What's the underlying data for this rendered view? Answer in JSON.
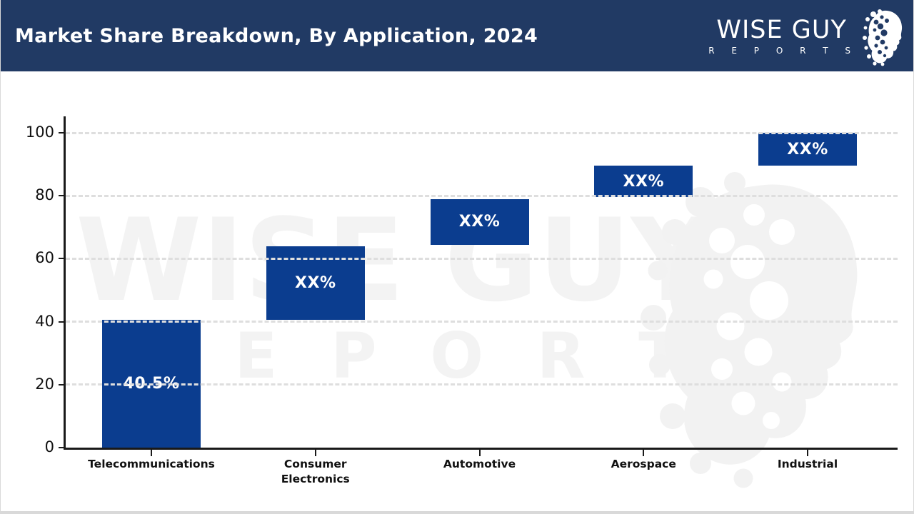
{
  "header": {
    "title": "Market Share Breakdown, By Application, 2024",
    "logo": {
      "line1": "WISE GUY",
      "line2": "R E P O R T S"
    }
  },
  "watermark": {
    "line1": "WISE GUY",
    "line2": "R E P O R T S"
  },
  "colors": {
    "header_bg": "#213a64",
    "bar": "#0b3d8f",
    "axis": "#1a1a1a",
    "grid": "#dedede",
    "tick_label": "#111111",
    "bar_label": "#ffffff",
    "watermark": "#f3f3f3",
    "logo_text": "#ffffff"
  },
  "chart_data": {
    "type": "bar",
    "subtype": "waterfall",
    "title": "Market Share Breakdown, By Application, 2024",
    "categories": [
      "Telecommunications",
      "Consumer Electronics",
      "Automotive",
      "Aerospace",
      "Industrial"
    ],
    "series": [
      {
        "name": "Market share (%)",
        "segments": [
          {
            "category": "Telecommunications",
            "start": 0,
            "end": 40.5,
            "label": "40.5%"
          },
          {
            "category": "Consumer Electronics",
            "start": 40.5,
            "end": 64,
            "label": "XX%"
          },
          {
            "category": "Automotive",
            "start": 64.5,
            "end": 79,
            "label": "XX%"
          },
          {
            "category": "Aerospace",
            "start": 79.5,
            "end": 89.5,
            "label": "XX%"
          },
          {
            "category": "Industrial",
            "start": 89.5,
            "end": 100,
            "label": "XX%"
          }
        ]
      }
    ],
    "xlabel": "",
    "ylabel": "",
    "ylim": [
      0,
      100
    ],
    "yticks": [
      0,
      20,
      40,
      60,
      80,
      100
    ],
    "grid": "horizontal-dashed",
    "legend": "none"
  }
}
